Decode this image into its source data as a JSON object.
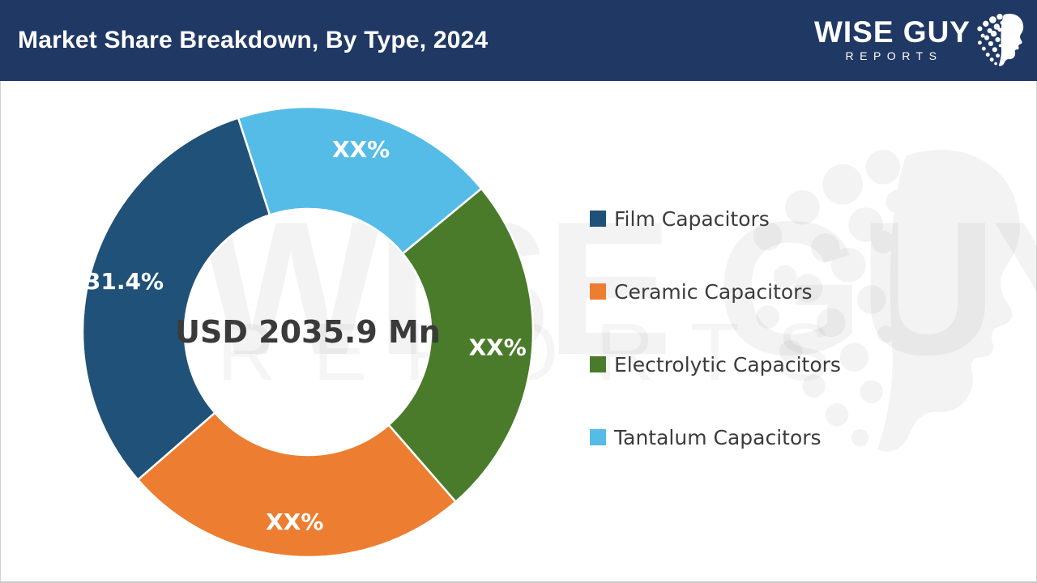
{
  "header": {
    "title": "Market Share Breakdown, By Type, 2024",
    "bg_color": "#203864",
    "logo": {
      "line1": "WISE GUY",
      "line2": "REPORTS"
    }
  },
  "watermark": {
    "line1": "WISE GUY",
    "line2": "REPORTS"
  },
  "chart_data": {
    "type": "pie",
    "subtype": "donut",
    "title": "Market Share Breakdown, By Type, 2024",
    "center_label": "USD 2035.9 Mn",
    "legend_position": "right",
    "start_angle_deg": 108,
    "direction": "counterclockwise",
    "segments": [
      {
        "name": "Film Capacitors",
        "label": "31.4%",
        "value_pct": 31.4,
        "arc_pct_est": 31.4,
        "color": "#205178"
      },
      {
        "name": "Ceramic Capacitors",
        "label": "XX%",
        "value_pct": null,
        "arc_pct_est": 25.0,
        "color": "#ED7D31"
      },
      {
        "name": "Electrolytic Capacitors",
        "label": "XX%",
        "value_pct": null,
        "arc_pct_est": 24.6,
        "color": "#4A7B2A"
      },
      {
        "name": "Tantalum Capacitors",
        "label": "XX%",
        "value_pct": null,
        "arc_pct_est": 19.0,
        "color": "#54BCE6"
      }
    ]
  }
}
